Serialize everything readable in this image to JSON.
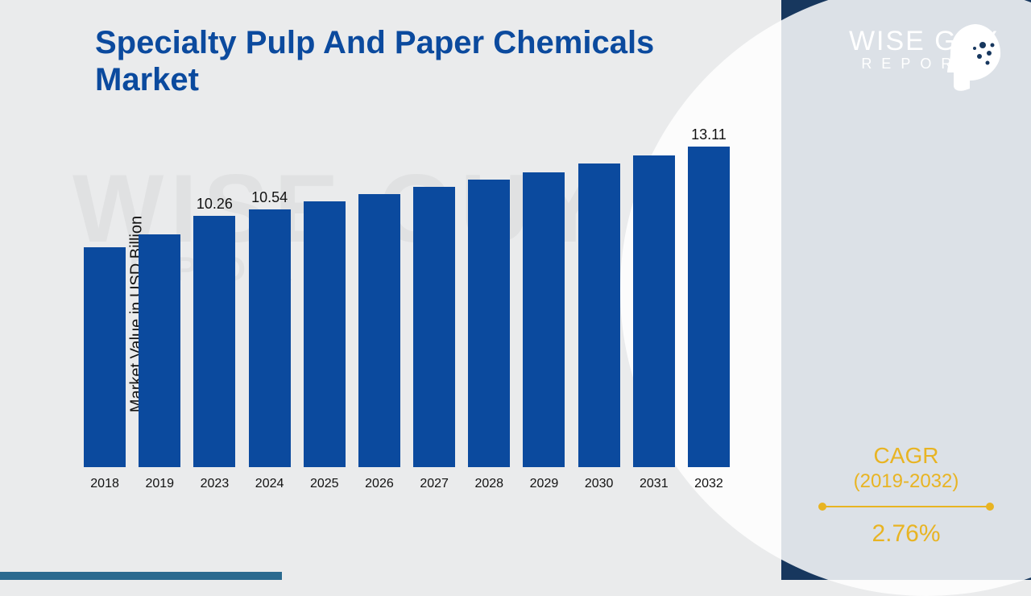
{
  "title": "Specialty Pulp And Paper Chemicals Market",
  "logo": {
    "line1": "WISE GUY",
    "line2": "REPORTS"
  },
  "cagr": {
    "title": "CAGR",
    "range": "(2019-2032)",
    "value": "2.76%",
    "color": "#e8b423"
  },
  "chart": {
    "type": "bar",
    "ylabel": "Market Value in USD Billion",
    "bar_color": "#0b4a9e",
    "background_color": "#eaebec",
    "ylim_max": 13.5,
    "label_fontsize": 18,
    "xlabel_fontsize": 16,
    "ylabel_fontsize": 20,
    "bars": [
      {
        "x": "2018",
        "value": 9.0,
        "show_label": false
      },
      {
        "x": "2019",
        "value": 9.5,
        "show_label": false
      },
      {
        "x": "2023",
        "value": 10.26,
        "show_label": true
      },
      {
        "x": "2024",
        "value": 10.54,
        "show_label": true
      },
      {
        "x": "2025",
        "value": 10.85,
        "show_label": false
      },
      {
        "x": "2026",
        "value": 11.15,
        "show_label": false
      },
      {
        "x": "2027",
        "value": 11.45,
        "show_label": false
      },
      {
        "x": "2028",
        "value": 11.75,
        "show_label": false
      },
      {
        "x": "2029",
        "value": 12.05,
        "show_label": false
      },
      {
        "x": "2030",
        "value": 12.4,
        "show_label": false
      },
      {
        "x": "2031",
        "value": 12.75,
        "show_label": false
      },
      {
        "x": "2032",
        "value": 13.11,
        "show_label": true
      }
    ]
  },
  "colors": {
    "sidebar": "#17375e",
    "title": "#0b4a9e",
    "circle": "#ffffff",
    "accent_bar": "#2b6a8f",
    "background": "#eaebec"
  },
  "watermark": {
    "line1": "WISE GUY",
    "line2": "REPORTS"
  }
}
